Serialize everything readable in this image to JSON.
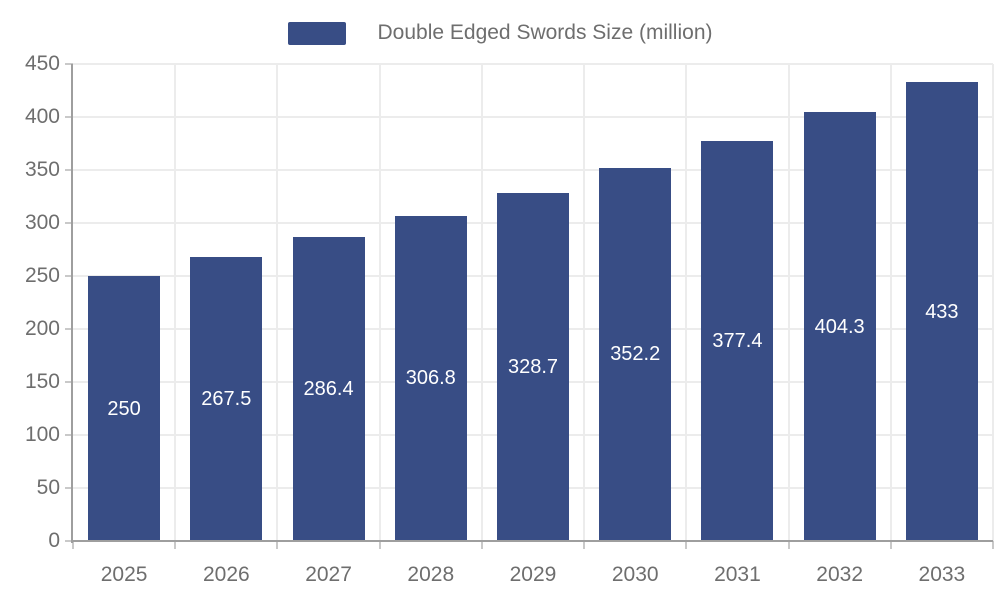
{
  "legend": {
    "label": "Double Edged Swords Size (million)"
  },
  "colors": {
    "bar": "#384d85",
    "grid": "#ececec",
    "axis": "#9e9e9e",
    "tick": "#c9c9c9",
    "tick_label": "#6e6e6e",
    "value_label": "#ffffff",
    "background": "#ffffff"
  },
  "chart_data": {
    "type": "bar",
    "title": "Double Edged Swords Size (million)",
    "categories": [
      "2025",
      "2026",
      "2027",
      "2028",
      "2029",
      "2030",
      "2031",
      "2032",
      "2033"
    ],
    "values": [
      250,
      267.5,
      286.4,
      306.8,
      328.7,
      352.2,
      377.4,
      404.3,
      433
    ],
    "value_labels": [
      "250",
      "267.5",
      "286.4",
      "306.8",
      "328.7",
      "352.2",
      "377.4",
      "404.3",
      "433"
    ],
    "xlabel": "",
    "ylabel": "",
    "ylim": [
      0,
      450
    ],
    "ytick_step": 50,
    "ytick_labels": [
      "0",
      "50",
      "100",
      "150",
      "200",
      "250",
      "300",
      "350",
      "400",
      "450"
    ],
    "grid": true,
    "legend_position": "top-center",
    "value_label_position": "inside-center"
  }
}
